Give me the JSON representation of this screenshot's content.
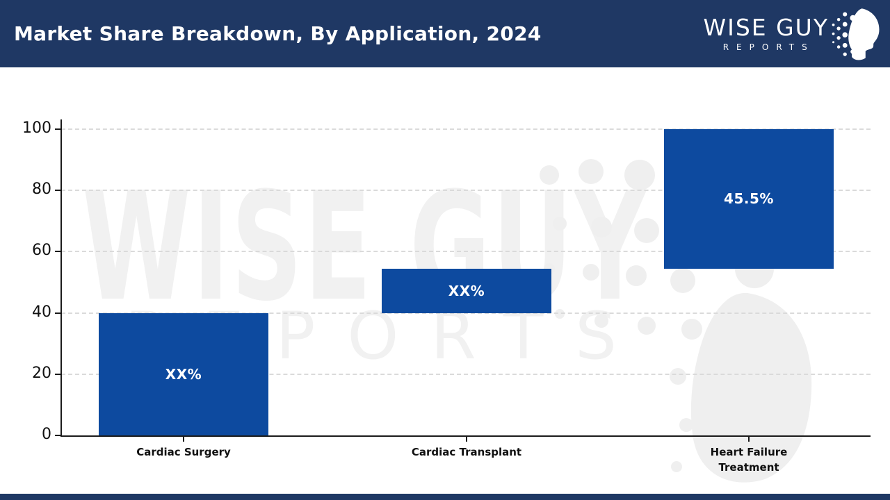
{
  "header": {
    "title": "Market Share Breakdown, By Application, 2024",
    "logo": {
      "wordmark": "WISE GUY",
      "subtext": "REPORTS"
    }
  },
  "watermark": {
    "line1": "WISE GUY",
    "line2": "REPORTS"
  },
  "chart_data": {
    "type": "bar",
    "subtype": "waterfall",
    "title": "Market Share Breakdown, By Application, 2024",
    "categories": [
      "Cardiac Surgery",
      "Cardiac Transplant",
      "Heart Failure Treatment"
    ],
    "category_lines": [
      [
        "Cardiac Surgery"
      ],
      [
        "Cardiac Transplant"
      ],
      [
        "Heart Failure",
        "Treatment"
      ]
    ],
    "segments": [
      {
        "category": "Cardiac Surgery",
        "start": 0,
        "end": 40,
        "label": "XX%"
      },
      {
        "category": "Cardiac Transplant",
        "start": 40,
        "end": 54.5,
        "label": "XX%"
      },
      {
        "category": "Heart Failure Treatment",
        "start": 54.5,
        "end": 100,
        "label": "45.5%"
      }
    ],
    "xlabel": "",
    "ylabel": "",
    "ylim": [
      0,
      100
    ],
    "yticks": [
      0,
      20,
      40,
      60,
      80,
      100
    ],
    "grid": "horizontal-dashed",
    "legend": "none",
    "bar_color": "#0d4a9f",
    "bar_label_color": "#ffffff"
  },
  "colors": {
    "header_bg": "#1f3864",
    "footer_bg": "#1f3864",
    "bar": "#0d4a9f",
    "axis": "#1a1a1a",
    "gridline": "#dadada",
    "watermark": "#f1f1f1",
    "tick_label": "#111111"
  }
}
